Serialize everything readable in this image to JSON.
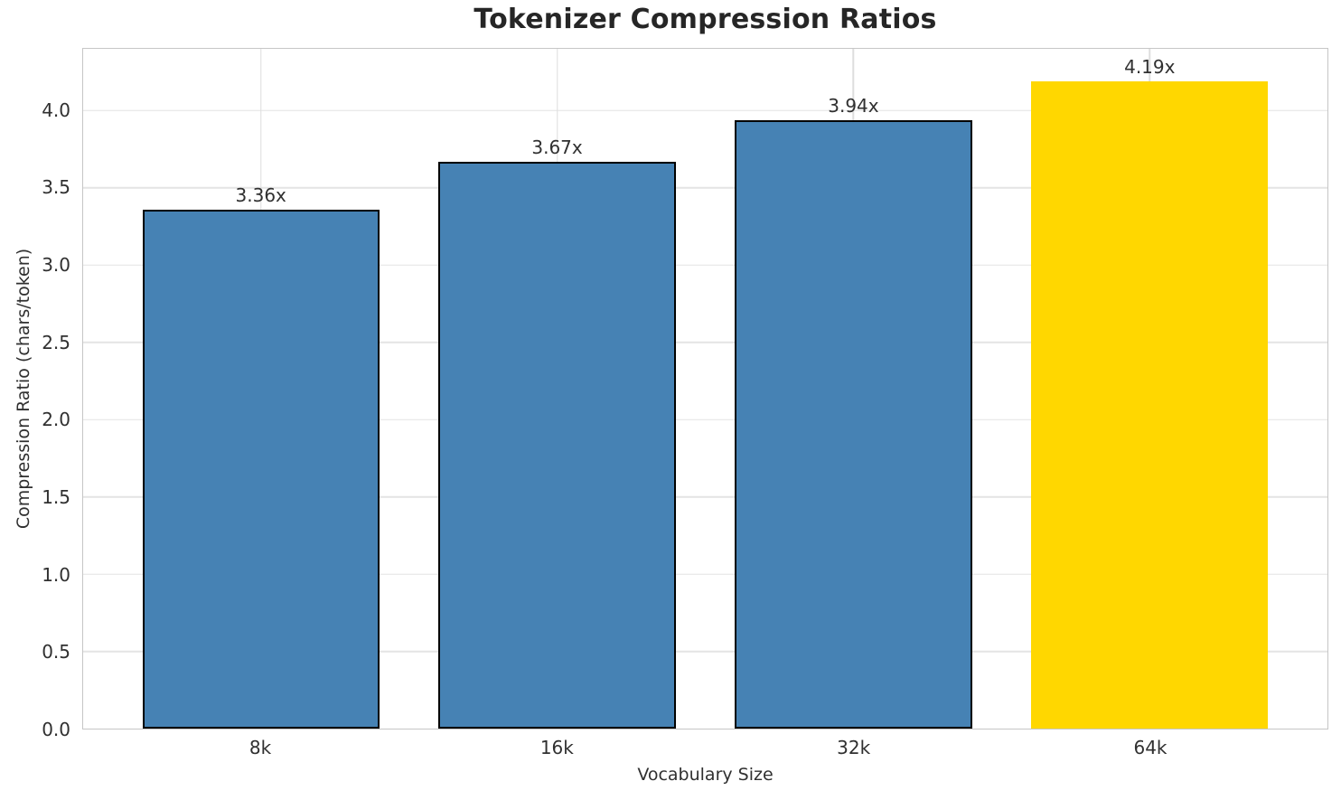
{
  "chart_data": {
    "type": "bar",
    "title": "Tokenizer Compression Ratios",
    "xlabel": "Vocabulary Size",
    "ylabel": "Compression Ratio (chars/token)",
    "categories": [
      "8k",
      "16k",
      "32k",
      "64k"
    ],
    "values": [
      3.36,
      3.67,
      3.94,
      4.19
    ],
    "bar_labels": [
      "3.36x",
      "3.67x",
      "3.94x",
      "4.19x"
    ],
    "yticks": [
      0.0,
      0.5,
      1.0,
      1.5,
      2.0,
      2.5,
      3.0,
      3.5,
      4.0
    ],
    "ylim": [
      0,
      4.4
    ],
    "grid": true,
    "legend": null,
    "colors": {
      "base_bar": "#4682B4",
      "highlight_bar": "#FFD700",
      "bar_edge": "#000000",
      "grid_line": "#e4e4e4",
      "spine": "#c6c6c6",
      "text": "#303030",
      "title_text": "#262626"
    },
    "bar_colors": [
      "#4682B4",
      "#4682B4",
      "#4682B4",
      "#FFD700"
    ],
    "bar_edge_colors": [
      "#000000",
      "#000000",
      "#000000",
      null
    ]
  }
}
